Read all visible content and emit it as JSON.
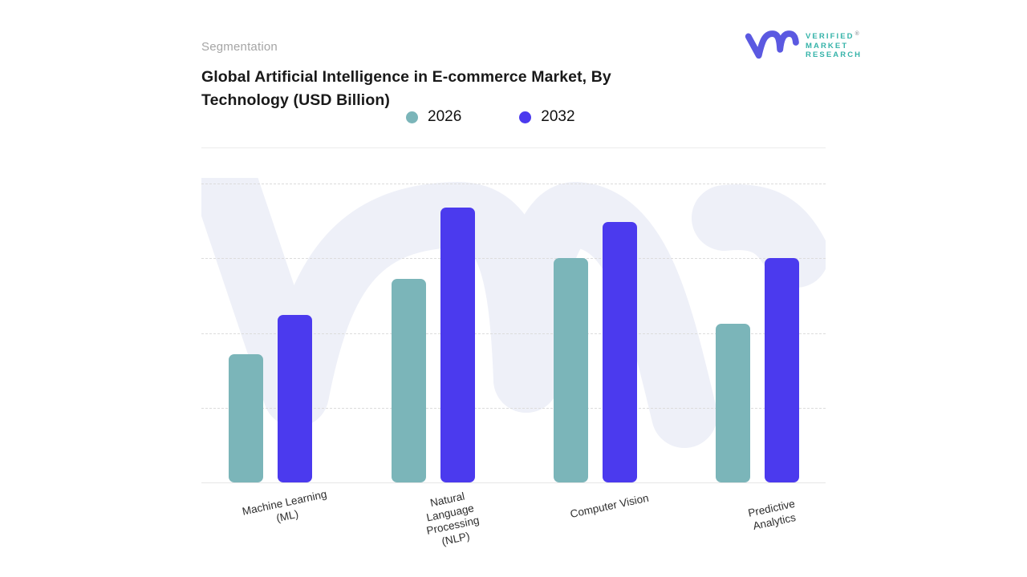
{
  "header": {
    "eyebrow": "Segmentation",
    "title": "Global Artificial Intelligence in E-commerce Market, By Technology (USD Billion)"
  },
  "logo": {
    "monogram_icon": "vm-monogram",
    "brand_lines": [
      "VERIFIED",
      "MARKET",
      "RESEARCH"
    ],
    "registered_mark": "®",
    "colors": {
      "monogram": "#5b59e1",
      "brand_text": "#35b3a9"
    }
  },
  "legend": [
    {
      "label": "2026",
      "color": "#7bb5b9"
    },
    {
      "label": "2032",
      "color": "#4b3aee"
    }
  ],
  "chart_data": {
    "type": "bar",
    "grouped": true,
    "title": "Global Artificial Intelligence in E-commerce Market, By Technology (USD Billion)",
    "categories": [
      "Machine Learning (ML)",
      "Natural Language Processing (NLP)",
      "Computer Vision",
      "Predictive Analytics"
    ],
    "category_display_lines": [
      [
        "Machine Learning",
        "(ML)"
      ],
      [
        "Natural",
        "Language",
        "Processing",
        "(NLP)"
      ],
      [
        "Computer Vision"
      ],
      [
        "Predictive",
        "Analytics"
      ]
    ],
    "series": [
      {
        "name": "2026",
        "color": "#7bb5b9",
        "values": [
          43,
          68,
          75,
          53
        ]
      },
      {
        "name": "2032",
        "color": "#4b3aee",
        "values": [
          56,
          92,
          87,
          75
        ]
      }
    ],
    "xlabel": "",
    "ylabel": "",
    "y_axis_labeled": false,
    "values_note": "No numeric y-axis is shown; values are estimated relative heights where the top dashed gridline = 100",
    "ylim": [
      0,
      102
    ],
    "gridlines": [
      25,
      50,
      75,
      100
    ],
    "grid_style": "dashed horizontal",
    "legend_position": "top-center",
    "watermark": "vm monogram, light lavender, behind bars"
  },
  "watermark_color": "#eef0f8"
}
